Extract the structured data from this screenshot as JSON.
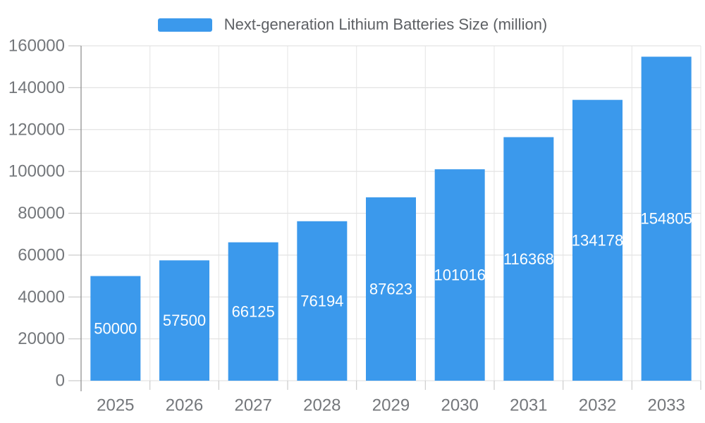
{
  "chart_data": {
    "type": "bar",
    "title": "",
    "legend_label": "Next-generation Lithium Batteries Size (million)",
    "legend_position": "top",
    "categories": [
      "2025",
      "2026",
      "2027",
      "2028",
      "2029",
      "2030",
      "2031",
      "2032",
      "2033"
    ],
    "values": [
      50000,
      57500,
      66125,
      76194,
      87623,
      101016,
      116368,
      134178,
      154805
    ],
    "series": [
      {
        "name": "Next-generation Lithium Batteries Size (million)",
        "values": [
          50000,
          57500,
          66125,
          76194,
          87623,
          101016,
          116368,
          134178,
          154805
        ]
      }
    ],
    "xlabel": "",
    "ylabel": "",
    "ylim": [
      0,
      160000
    ],
    "yticks": [
      0,
      20000,
      40000,
      60000,
      80000,
      100000,
      120000,
      140000,
      160000
    ],
    "grid": true,
    "value_labels_inside_bars": true,
    "colors": {
      "bar": "#3b99ec",
      "bar_label": "#ffffff",
      "axis_text": "#74777b",
      "legend_text": "#5d6064",
      "grid_line": "#e3e3e3",
      "split_line": "#e9e9e9",
      "tick": "#cccccc",
      "axis_line": "#999999",
      "background": "#ffffff"
    }
  }
}
